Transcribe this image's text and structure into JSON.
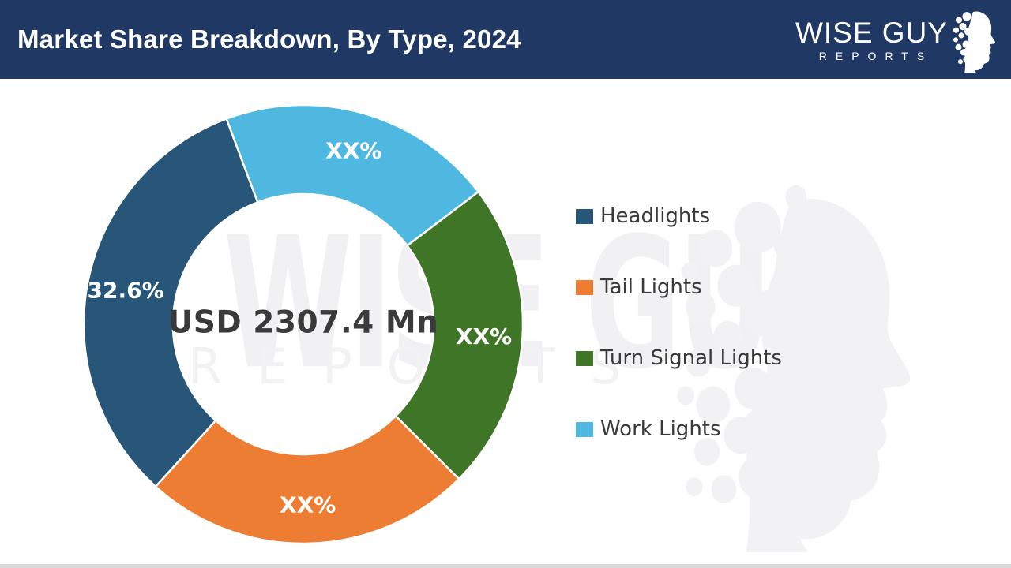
{
  "header": {
    "title": "Market Share Breakdown, By Type, 2024",
    "logo": {
      "line1": "WISE GUY",
      "line2": "REPORTS"
    }
  },
  "watermark": {
    "line1": "WISE GUY",
    "line2": "REPORTS"
  },
  "chart_data": {
    "type": "donut",
    "title": "Market Share Breakdown, By Type, 2024",
    "center_label": "USD 2307.4 Mn",
    "start_angle_deg": 339.5,
    "segments": [
      {
        "name": "Work Lights",
        "value": 20.4,
        "label": "XX%",
        "color": "#4FB8E0"
      },
      {
        "name": "Turn Signal Lights",
        "value": 22.8,
        "label": "XX%",
        "color": "#3F7527"
      },
      {
        "name": "Tail Lights",
        "value": 24.3,
        "label": "XX%",
        "color": "#EC7D33"
      },
      {
        "name": "Headlights",
        "value": 32.6,
        "label": "32.6%",
        "color": "#275679"
      }
    ],
    "legend_position": "right"
  },
  "legend": {
    "items": [
      {
        "label": "Headlights",
        "color": "#275679"
      },
      {
        "label": "Tail Lights",
        "color": "#EC7D33"
      },
      {
        "label": "Turn Signal Lights",
        "color": "#3F7527"
      },
      {
        "label": "Work Lights",
        "color": "#4FB8E0"
      }
    ]
  }
}
